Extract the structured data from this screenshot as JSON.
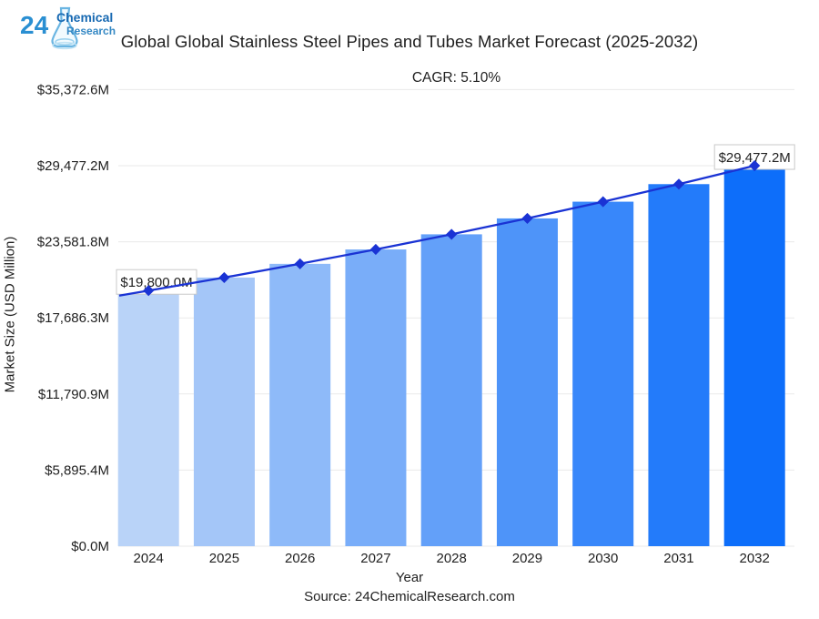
{
  "brand": {
    "number": "24",
    "line1": "Chemical",
    "line2": "Research"
  },
  "header": {
    "title": "Global Global Stainless Steel Pipes and Tubes Market Forecast (2025-2032)",
    "cagr": "CAGR: 5.10%"
  },
  "footer": {
    "source": "Source: 24ChemicalResearch.com"
  },
  "chart_data": {
    "type": "bar",
    "title": "Global Global Stainless Steel Pipes and Tubes Market Forecast (2025-2032)",
    "subtitle": "CAGR: 5.10%",
    "xlabel": "Year",
    "ylabel": "Market Size (USD Million)",
    "categories": [
      "2024",
      "2025",
      "2026",
      "2027",
      "2028",
      "2029",
      "2030",
      "2031",
      "2032"
    ],
    "series": [
      {
        "name": "Market Size (USD Million)",
        "type": "bar",
        "values": [
          19800.0,
          20810.6,
          21871.9,
          22987.4,
          24159.7,
          25391.9,
          26686.9,
          28047.9,
          29477.2
        ]
      },
      {
        "name": "Trend",
        "type": "line",
        "values": [
          19800.0,
          20810.6,
          21871.9,
          22987.4,
          24159.7,
          25391.9,
          26686.9,
          28047.9,
          29477.2
        ]
      }
    ],
    "ylim": [
      0,
      35372.6
    ],
    "y_ticks": [
      {
        "value": 0,
        "label": "$0.0M"
      },
      {
        "value": 5895.4,
        "label": "$5,895.4M"
      },
      {
        "value": 11790.9,
        "label": "$11,790.9M"
      },
      {
        "value": 17686.3,
        "label": "$17,686.3M"
      },
      {
        "value": 23581.8,
        "label": "$23,581.8M"
      },
      {
        "value": 29477.2,
        "label": "$29,477.2M"
      },
      {
        "value": 35372.6,
        "label": "$35,372.6M"
      }
    ],
    "grid": "horizontal",
    "legend": "none",
    "gridline_color": "#e9e9e9",
    "bar_colors": [
      "#b9d3f8",
      "#a4c6f8",
      "#8ebaf9",
      "#79adf9",
      "#63a0f9",
      "#4e94f9",
      "#3887fa",
      "#237bfa",
      "#0d6efa"
    ],
    "line_color": "#1a33d4",
    "annotations": [
      {
        "category": "2024",
        "text": "$19,800.0M"
      },
      {
        "category": "2032",
        "text": "$29,477.2M"
      }
    ]
  }
}
